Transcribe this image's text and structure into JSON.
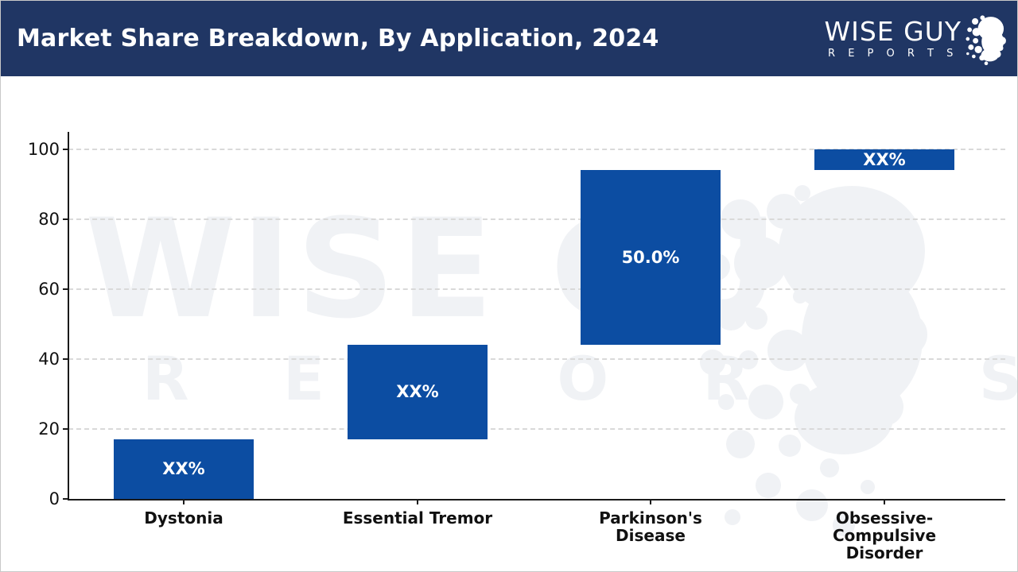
{
  "header": {
    "title": "Market Share Breakdown, By Application, 2024",
    "logo": {
      "brand": "WISE GUY",
      "sub": "R E P O R T S"
    }
  },
  "watermark": {
    "brand": "WISE GU",
    "sub": "R E P O R T S"
  },
  "chart_data": {
    "type": "bar",
    "variant": "waterfall",
    "title": "Market Share Breakdown, By Application, 2024",
    "categories": [
      "Dystonia",
      "Essential Tremor",
      "Parkinson's Disease",
      "Obsessive-Compulsive Disorder"
    ],
    "category_lines": [
      [
        "Dystonia"
      ],
      [
        "Essential Tremor"
      ],
      [
        "Parkinson's",
        "Disease"
      ],
      [
        "Obsessive-",
        "Compulsive",
        "Disorder"
      ]
    ],
    "segments": [
      {
        "category": "Dystonia",
        "start": 0,
        "end": 17,
        "value": 17,
        "label": "XX%"
      },
      {
        "category": "Essential Tremor",
        "start": 17,
        "end": 44,
        "value": 27,
        "label": "XX%"
      },
      {
        "category": "Parkinson's Disease",
        "start": 44,
        "end": 94,
        "value": 50,
        "label": "50.0%"
      },
      {
        "category": "Obsessive-Compulsive Disorder",
        "start": 94,
        "end": 100,
        "value": 6,
        "label": "XX%"
      }
    ],
    "ylim": [
      0,
      100
    ],
    "yticks": [
      "0",
      "20",
      "40",
      "60",
      "80",
      "100"
    ],
    "grid": "horizontal dashed",
    "legend": "none"
  },
  "colors": {
    "header_bg": "#203664",
    "bar": "#0c4da2",
    "bar_label": "#ffffff",
    "grid": "#d9d9d9",
    "axis": "#1a1a1a",
    "watermark": "#f0f2f5",
    "page_border": "#c9c9c9"
  }
}
